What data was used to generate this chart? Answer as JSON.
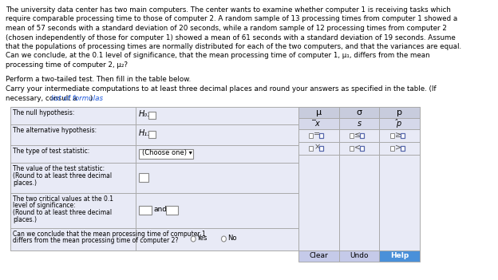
{
  "paragraph_text": "The university data center has two main computers. The center wants to examine whether computer 1 is receiving tasks which\nrequire comparable processing time to those of computer 2. A random sample of 13 processing times from computer 1 showed a\nmean of 57 seconds with a standard deviation of 20 seconds, while a random sample of 12 processing times from computer 2\n(chosen independently of those for computer 1) showed a mean of 61 seconds with a standard deviation of 19 seconds. Assume\nthat the populations of processing times are normally distributed for each of the two computers, and that the variances are equal.\nCan we conclude, at the 0.1 level of significance, that the mean processing time of computer 1, μ₁, differs from the mean\nprocessing time of computer 2, μ₂?",
  "instruction1": "Perform a two-tailed test. Then fill in the table below.",
  "instruction2": "Carry your intermediate computations to at least three decimal places and round your answers as specified in the table. (If\nnecessary, consult a list of formulas.)",
  "bg_color": "#ffffff",
  "table_bg": "#e8eaf6",
  "table_header_bg": "#c5cae9",
  "border_color": "#aaaaaa",
  "row_labels": [
    "The null hypothesis:",
    "The alternative hypothesis:",
    "The type of test statistic:",
    "The value of the test statistic:\n(Round to at least three decimal\nplaces.)",
    "The two critical values at the 0.1\nlevel of significance:\n(Round to at least three decimal\nplaces.)",
    "Can we conclude that the mean processing time of computer 1\ndiffers from the mean processing time of computer 2?"
  ],
  "row2_content": "H₀:",
  "row3_content": "H₁:",
  "row4_content": "(Choose one) ▾",
  "right_panel_headers": [
    "μ",
    "σ",
    "p"
  ],
  "right_panel_row2": [
    "̅x",
    "s",
    "̂p"
  ],
  "button_labels": [
    "Clear",
    "Undo",
    "Help"
  ],
  "help_btn_color": "#4a90d9",
  "link_color": "#1a56db"
}
